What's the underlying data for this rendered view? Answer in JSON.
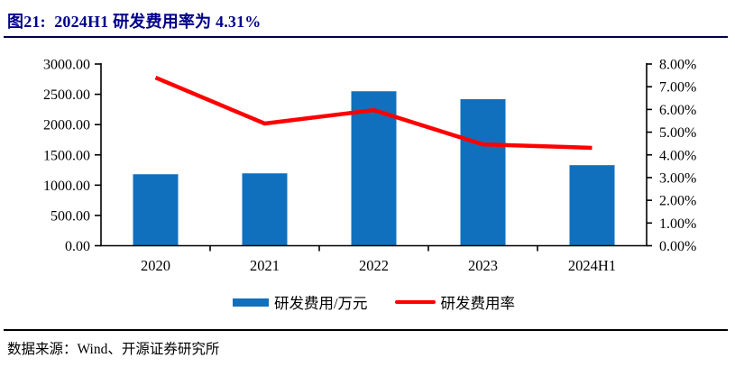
{
  "title": {
    "text": "图21:  2024H1 研发费用率为 4.31%"
  },
  "source": {
    "text": "数据来源：Wind、开源证券研究所"
  },
  "legend": [
    {
      "label": "研发费用/万元",
      "color": "#1070BD",
      "swatch": "bar-swatch"
    },
    {
      "label": "研发费用率",
      "color": "#FF0000",
      "swatch": "line-swatch"
    }
  ],
  "colors": {
    "title_navy": "#00008B",
    "bar_blue": "#1070BD",
    "line_red": "#FF0000",
    "axis_black": "#000000"
  },
  "chart_data": {
    "type": "combo-bar-line",
    "categories": [
      "2020",
      "2021",
      "2022",
      "2023",
      "2024H1"
    ],
    "series": [
      {
        "name": "研发费用/万元",
        "type": "bar",
        "axis": "left",
        "color": "#1070BD",
        "values": [
          1180,
          1195,
          2550,
          2420,
          1330
        ]
      },
      {
        "name": "研发费用率",
        "type": "line",
        "axis": "right",
        "color": "#FF0000",
        "unit": "%",
        "values": [
          7.4,
          5.38,
          5.97,
          4.46,
          4.31
        ]
      }
    ],
    "left_axis": {
      "min": 0,
      "max": 3000,
      "step": 500,
      "tick_labels": [
        "0.00",
        "500.00",
        "1000.00",
        "1500.00",
        "2000.00",
        "2500.00",
        "3000.00"
      ]
    },
    "right_axis": {
      "min": 0,
      "max": 8,
      "step": 1,
      "tick_labels": [
        "0.00%",
        "1.00%",
        "2.00%",
        "3.00%",
        "4.00%",
        "5.00%",
        "6.00%",
        "7.00%",
        "8.00%"
      ]
    },
    "grid": false,
    "legend_position": "bottom",
    "annotation": "2024H1 研发费用率为 4.31%"
  }
}
